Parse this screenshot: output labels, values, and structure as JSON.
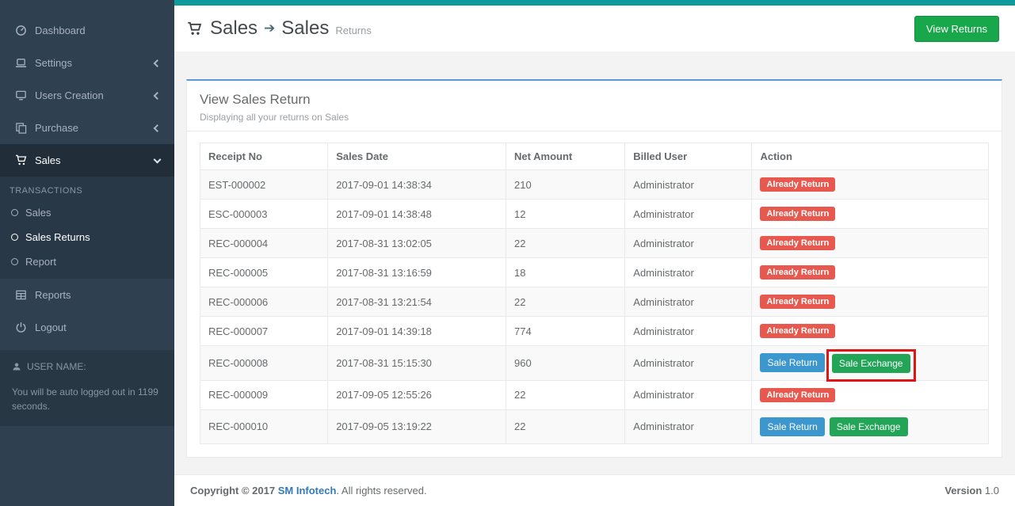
{
  "colors": {
    "sidebar_bg": "#2f4050",
    "sidebar_active_bg": "#222d3a",
    "submenu_bg": "#293846",
    "teal_topbar": "#0f9b9b",
    "panel_top_border": "#5b9bd5",
    "button_green": "#18a74a",
    "badge_red": "#e7584e",
    "badge_blue": "#3d97cf",
    "badge_green": "#23a558",
    "annotation_red": "#e01515",
    "link_blue": "#337ab7"
  },
  "sidebar": {
    "items": [
      {
        "label": "Dashboard",
        "icon": "dashboard-icon"
      },
      {
        "label": "Settings",
        "icon": "laptop-icon",
        "chevron": "left"
      },
      {
        "label": "Users Creation",
        "icon": "desktop-icon",
        "chevron": "left"
      },
      {
        "label": "Purchase",
        "icon": "copy-icon",
        "chevron": "left"
      },
      {
        "label": "Sales",
        "icon": "cart-icon",
        "chevron": "down",
        "active": true
      }
    ],
    "section": "TRANSACTIONS",
    "sub_items": [
      {
        "label": "Sales",
        "icon": "circle-outline-icon",
        "active": false
      },
      {
        "label": "Sales Returns",
        "icon": "circle-outline-icon",
        "active": true
      },
      {
        "label": "Report",
        "icon": "circle-outline-icon",
        "active": false
      }
    ],
    "items_lower": [
      {
        "label": "Reports",
        "icon": "table-icon"
      },
      {
        "label": "Logout",
        "icon": "power-icon"
      }
    ],
    "user_label": "USER NAME:",
    "auto_logout_notice": "You will be auto logged out in 1199 seconds."
  },
  "header": {
    "breadcrumb_primary": "Sales",
    "breadcrumb_arrow": "➔",
    "breadcrumb_secondary": "Sales",
    "breadcrumb_small": "Returns",
    "view_returns_button": "View Returns"
  },
  "panel": {
    "title": "View Sales Return",
    "subtitle": "Displaying all your returns on Sales"
  },
  "badges": {
    "already_return": "Already Return",
    "sale_return": "Sale Return",
    "sale_exchange": "Sale Exchange"
  },
  "table": {
    "columns": [
      "Receipt No",
      "Sales Date",
      "Net Amount",
      "Billed User",
      "Action"
    ],
    "rows": [
      {
        "receipt_no": "EST-000002",
        "sales_date": "2017-09-01 14:38:34",
        "net_amount": "210",
        "billed_user": "Administrator",
        "actions": [
          "already_return"
        ]
      },
      {
        "receipt_no": "ESC-000003",
        "sales_date": "2017-09-01 14:38:48",
        "net_amount": "12",
        "billed_user": "Administrator",
        "actions": [
          "already_return"
        ]
      },
      {
        "receipt_no": "REC-000004",
        "sales_date": "2017-08-31 13:02:05",
        "net_amount": "22",
        "billed_user": "Administrator",
        "actions": [
          "already_return"
        ]
      },
      {
        "receipt_no": "REC-000005",
        "sales_date": "2017-08-31 13:16:59",
        "net_amount": "18",
        "billed_user": "Administrator",
        "actions": [
          "already_return"
        ]
      },
      {
        "receipt_no": "REC-000006",
        "sales_date": "2017-08-31 13:21:54",
        "net_amount": "22",
        "billed_user": "Administrator",
        "actions": [
          "already_return"
        ]
      },
      {
        "receipt_no": "REC-000007",
        "sales_date": "2017-09-01 14:39:18",
        "net_amount": "774",
        "billed_user": "Administrator",
        "actions": [
          "already_return"
        ]
      },
      {
        "receipt_no": "REC-000008",
        "sales_date": "2017-08-31 15:15:30",
        "net_amount": "960",
        "billed_user": "Administrator",
        "actions": [
          "sale_return",
          "sale_exchange"
        ],
        "highlight": "sale_exchange"
      },
      {
        "receipt_no": "REC-000009",
        "sales_date": "2017-09-05 12:55:26",
        "net_amount": "22",
        "billed_user": "Administrator",
        "actions": [
          "already_return"
        ]
      },
      {
        "receipt_no": "REC-000010",
        "sales_date": "2017-09-05 13:19:22",
        "net_amount": "22",
        "billed_user": "Administrator",
        "actions": [
          "sale_return",
          "sale_exchange"
        ]
      }
    ]
  },
  "footer": {
    "copyright_prefix": "Copyright © 2017",
    "company": "SM Infotech",
    "copyright_suffix": ". All rights reserved.",
    "version_label": "Version",
    "version_value": "1.0"
  }
}
